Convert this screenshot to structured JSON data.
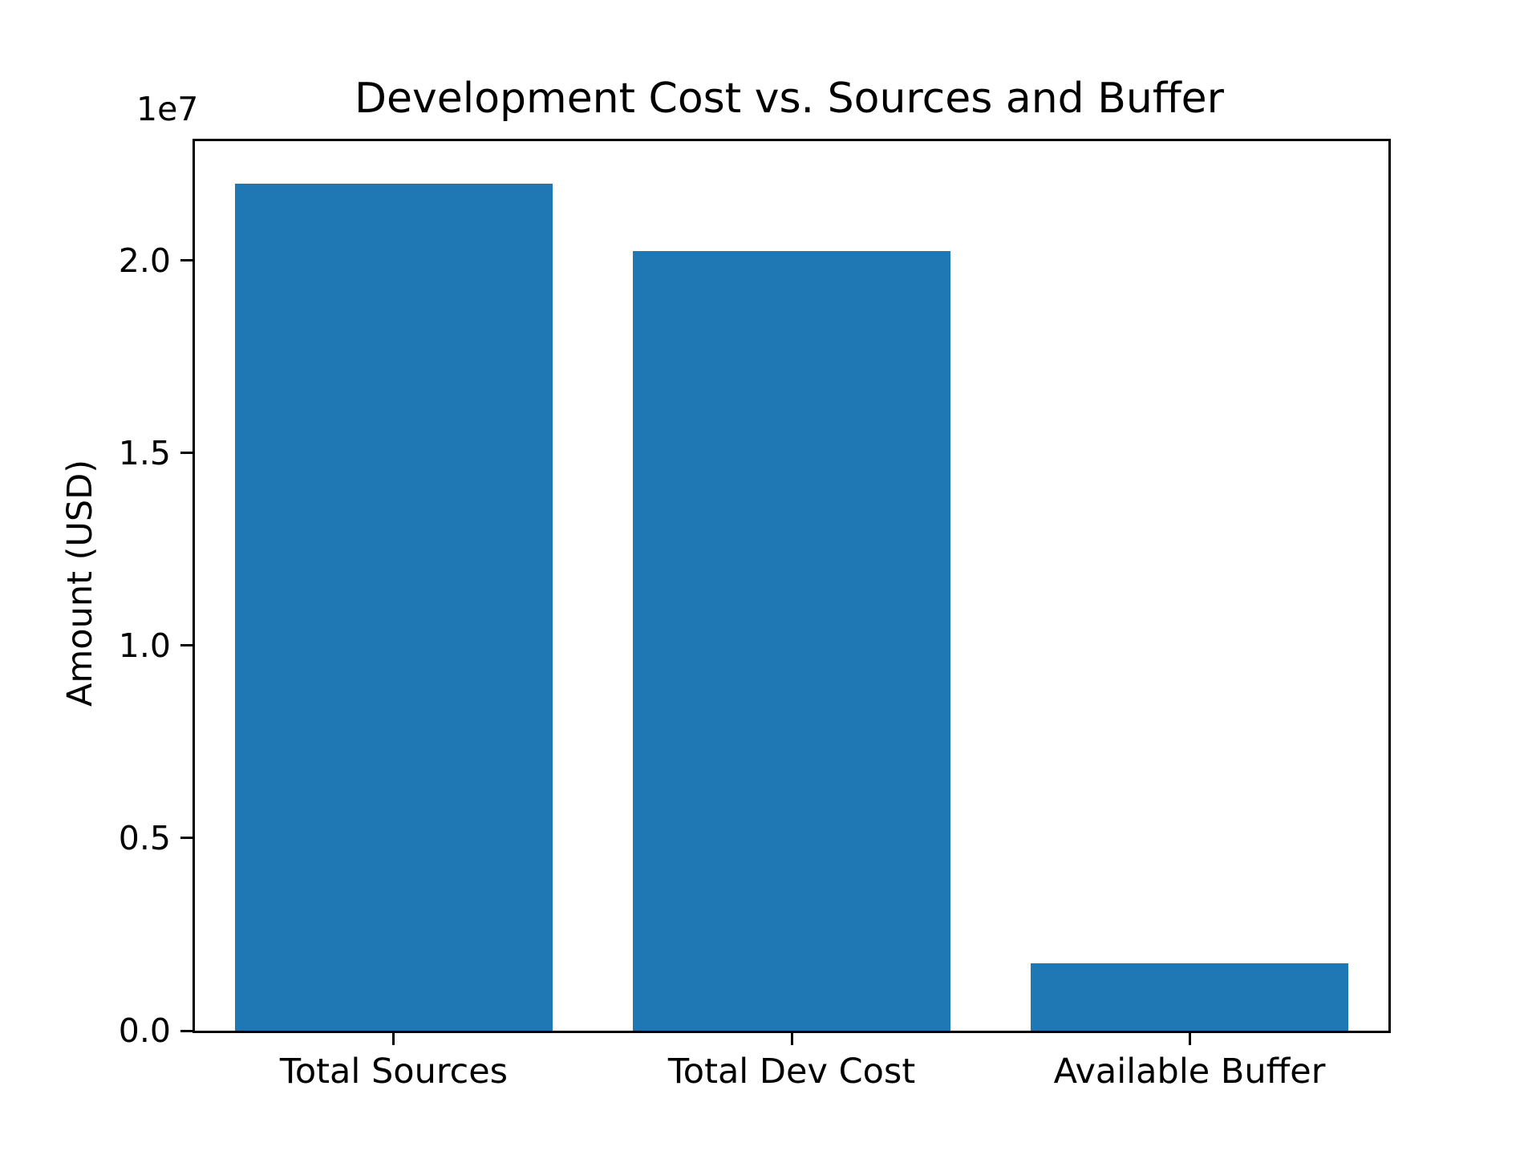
{
  "chart_data": {
    "type": "bar",
    "title": "Development Cost vs. Sources and Buffer",
    "xlabel": "",
    "ylabel": "Amount (USD)",
    "offset_text": "1e7",
    "categories": [
      "Total Sources",
      "Total Dev Cost",
      "Available Buffer"
    ],
    "values": [
      22000000,
      20250000,
      1750000
    ],
    "ylim": [
      0,
      23100000
    ],
    "yticks": [
      0,
      5000000,
      10000000,
      15000000,
      20000000
    ],
    "ytick_labels": [
      "0.0",
      "0.5",
      "1.0",
      "1.5",
      "2.0"
    ],
    "bar_width_fraction": 0.8,
    "bar_color": "#1f77b4",
    "axis_color": "#000000",
    "background_color": "#ffffff",
    "grid": false,
    "legend_position": "none"
  }
}
